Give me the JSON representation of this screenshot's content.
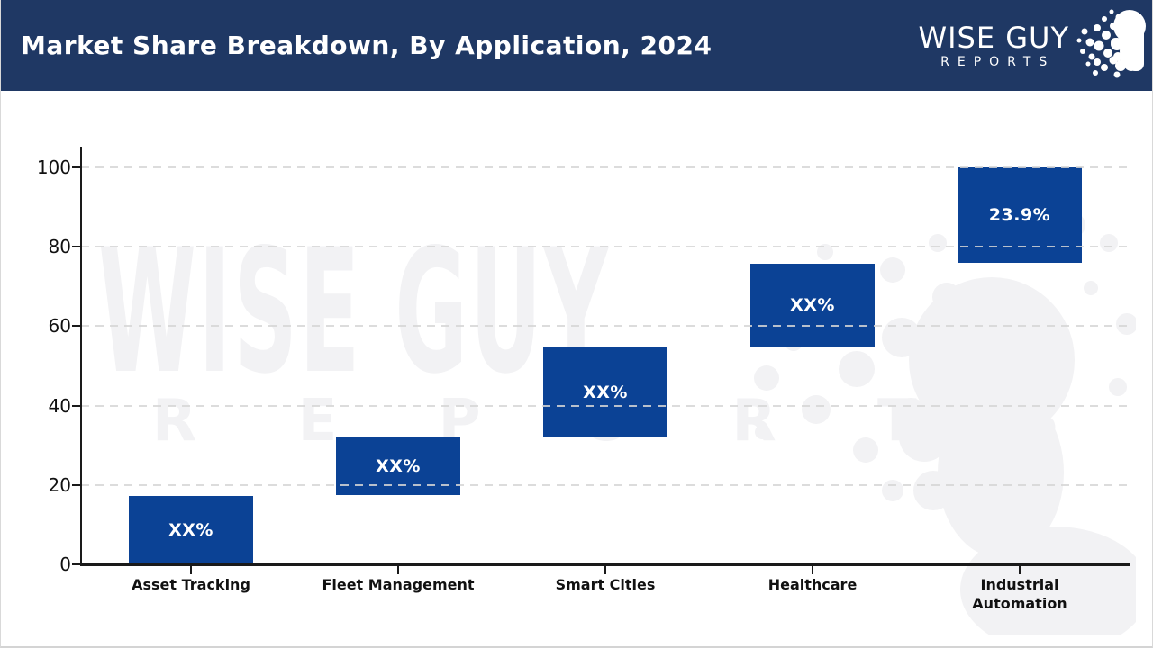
{
  "header": {
    "title": "Market Share Breakdown, By Application, 2024",
    "logo": {
      "line1": "WISE GUY",
      "line2": "REPORTS"
    },
    "bg_color": "#1f3864"
  },
  "watermark": {
    "line1": "WISE GUY",
    "line2": "R E P O R T S"
  },
  "chart_data": {
    "type": "bar",
    "subtype": "waterfall",
    "title": "Market Share Breakdown, By Application, 2024",
    "categories": [
      "Asset Tracking",
      "Fleet Management",
      "Smart Cities",
      "Healthcare",
      "Industrial Automation"
    ],
    "segments": [
      {
        "category": "Asset Tracking",
        "start": 0,
        "end": 17.2,
        "value": 17.2,
        "label": "XX%"
      },
      {
        "category": "Fleet Management",
        "start": 17.4,
        "end": 32.0,
        "value": 14.6,
        "label": "XX%"
      },
      {
        "category": "Smart Cities",
        "start": 32.0,
        "end": 54.6,
        "value": 22.6,
        "label": "XX%"
      },
      {
        "category": "Healthcare",
        "start": 54.9,
        "end": 75.8,
        "value": 20.9,
        "label": "XX%"
      },
      {
        "category": "Industrial Automation",
        "start": 76.0,
        "end": 99.9,
        "value": 23.9,
        "label": "23.9%"
      }
    ],
    "xlabel": "",
    "ylabel": "",
    "ylim": [
      0,
      105
    ],
    "yticks": [
      0,
      20,
      40,
      60,
      80,
      100
    ],
    "grid": "horizontal-dashed-over-bars",
    "legend": "none",
    "bar_color": "#0b4295",
    "bar_label_color": "#ffffff",
    "axis_color": "#1a1a1a"
  }
}
